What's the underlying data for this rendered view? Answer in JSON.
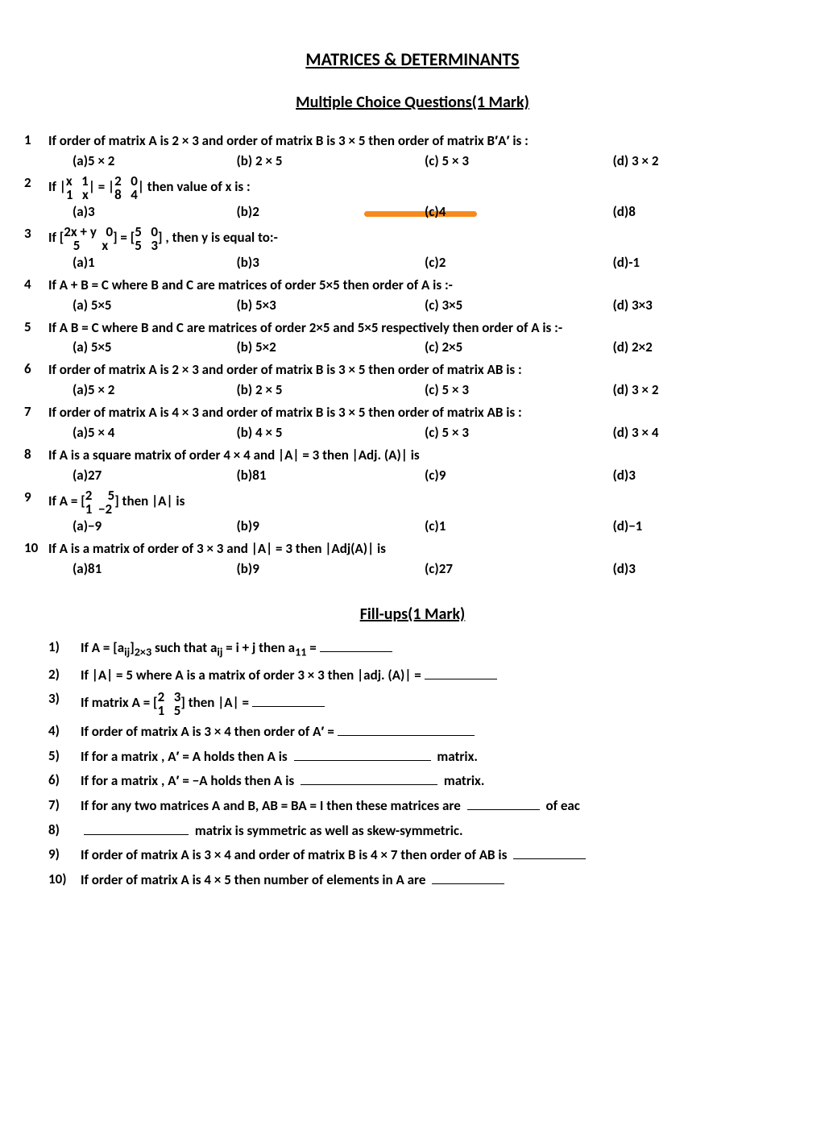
{
  "title": "MATRICES & DETERMINANTS",
  "subtitle": "Multiple Choice Questions(1 Mark)",
  "fill_title": "Fill-ups(1 Mark)",
  "highlight_color": "#f68a1e",
  "mcq": [
    {
      "n": "1",
      "stem": "If order of matrix  A  is  2 × 3 and order of matrix  B  is  3 × 5  then order of matrix  B′A′  is :",
      "a": "(a)5 × 2",
      "b": "(b) 2 × 5",
      "c": "(c) 5 × 3",
      "d": "(d) 3 × 2"
    },
    {
      "n": "2",
      "stem_html": "If  |<span style='display:inline-block;vertical-align:middle;line-height:1'><span style='display:block'>x&nbsp;&nbsp;&nbsp;1</span><span style='display:block'>1&nbsp;&nbsp;&nbsp;x</span></span>| = |<span style='display:inline-block;vertical-align:middle;line-height:1'><span style='display:block'>2&nbsp;&nbsp;&nbsp;0</span><span style='display:block'>8&nbsp;&nbsp;&nbsp;4</span></span>|  then value of x is :",
      "a": "(a)3",
      "b": "(b)2",
      "c": "(c)4",
      "d": "(d)8",
      "highlight_c": true
    },
    {
      "n": "3",
      "stem_html": "If [<span style='display:inline-block;vertical-align:middle;line-height:1'><span style='display:block'>2x + y&nbsp;&nbsp;&nbsp;0</span><span style='display:block'>&nbsp;&nbsp;&nbsp;5&nbsp;&nbsp;&nbsp;&nbsp;&nbsp;&nbsp;&nbsp;x</span></span>] = [<span style='display:inline-block;vertical-align:middle;line-height:1'><span style='display:block'>5&nbsp;&nbsp;&nbsp;0</span><span style='display:block'>5&nbsp;&nbsp;&nbsp;3</span></span>] , then y is equal to:-",
      "a": "(a)1",
      "b": "(b)3",
      "c": "(c)2",
      "d": "(d)-1"
    },
    {
      "n": "4",
      "stem": "If A + B = C where B and C are matrices of order 5×5 then order of A is :-",
      "a": "(a) 5×5",
      "b": "(b) 5×3",
      "c": "(c) 3×5",
      "d": "(d) 3×3"
    },
    {
      "n": "5",
      "stem": "If A B = C  where B and C are matrices of order 2×5 and 5×5 respectively then order of A is :-",
      "a": "(a) 5×5",
      "b": "(b) 5×2",
      "c": "(c) 2×5",
      "d": "(d) 2×2"
    },
    {
      "n": "6",
      "stem": "If order of matrix  A  is  2 × 3 and order of matrix  B  is  3 × 5  then order of matrix  AB  is :",
      "a": "(a)5 × 2",
      "b": "(b) 2 × 5",
      "c": "(c) 5 × 3",
      "d": "(d) 3 × 2"
    },
    {
      "n": "7",
      "stem": "If order of matrix  A  is  4 × 3 and order of matrix  B  is  3 × 5  then order of matrix  AB  is :",
      "a": "(a)5 × 4",
      "b": "(b) 4 × 5",
      "c": "(c) 5 × 3",
      "d": "(d) 3 × 4"
    },
    {
      "n": "8",
      "stem": "If A  is a square matrix of order 4 × 4 and |A| = 3 then |Adj. (A)| is",
      "a": "(a)27",
      "b": "(b)81",
      "c": "(c)9",
      "d": "(d)3"
    },
    {
      "n": "9",
      "stem_html": "If A = [<span style='display:inline-block;vertical-align:middle;line-height:1'><span style='display:block'>2&nbsp;&nbsp;&nbsp;&nbsp;&nbsp;5</span><span style='display:block'>1&nbsp;&nbsp;−2</span></span>]  then |A|  is",
      "a": "(a)−9",
      "b": "(b)9",
      "c": "(c)1",
      "d": "(d)−1"
    },
    {
      "n": "10",
      "stem": "If  A is a matrix of order of 3 × 3 and |A| = 3 then |Adj(A)| is",
      "a": "(a)81",
      "b": "(b)9",
      "c": "(c)27",
      "d": "(d)3"
    }
  ],
  "fill": [
    {
      "n": "1)",
      "html": "If  A = [a<sub>ij</sub>]<sub>2×3</sub>  such that a<sub>ij</sub> = i + j  then  a<sub>11</sub> =<span class='blank'></span>"
    },
    {
      "n": "2)",
      "html": "If |A| = 5  where A is a matrix of order 3 × 3  then  |adj. (A)| =<span class='blank'></span>"
    },
    {
      "n": "3)",
      "html": "If matrix A = [<span style='display:inline-block;vertical-align:middle;line-height:1'><span style='display:block'>2&nbsp;&nbsp;&nbsp;3</span><span style='display:block'>1&nbsp;&nbsp;&nbsp;5</span></span>]  then  |A| =<span class='blank'></span>"
    },
    {
      "n": "4)",
      "html": "If order of matrix A is 3 × 4 then order of A′ =<span class='blank blank-long'></span>"
    },
    {
      "n": "5)",
      "html": "If for a matrix  , A′ = A holds then A is <span class='blank blank-long'></span> matrix."
    },
    {
      "n": "6)",
      "html": "If for a matrix  , A′ = −A holds then A is <span class='blank blank-long'></span> matrix."
    },
    {
      "n": "7)",
      "html": "If for any two matrices A and B, AB = BA = I then these matrices are <span class='blank'></span> of eac"
    },
    {
      "n": "8)",
      "html": "<span class='blank blank-med'></span> matrix is symmetric as well as skew-symmetric."
    },
    {
      "n": "9)",
      "html": "If order of matrix A is 3 × 4 and order of matrix B is 4 × 7 then order of AB is <span class='blank'></span>"
    },
    {
      "n": "10)",
      "html": "If order of matrix A is 4 × 5 then number of elements in A are <span class='blank'></span>"
    }
  ]
}
